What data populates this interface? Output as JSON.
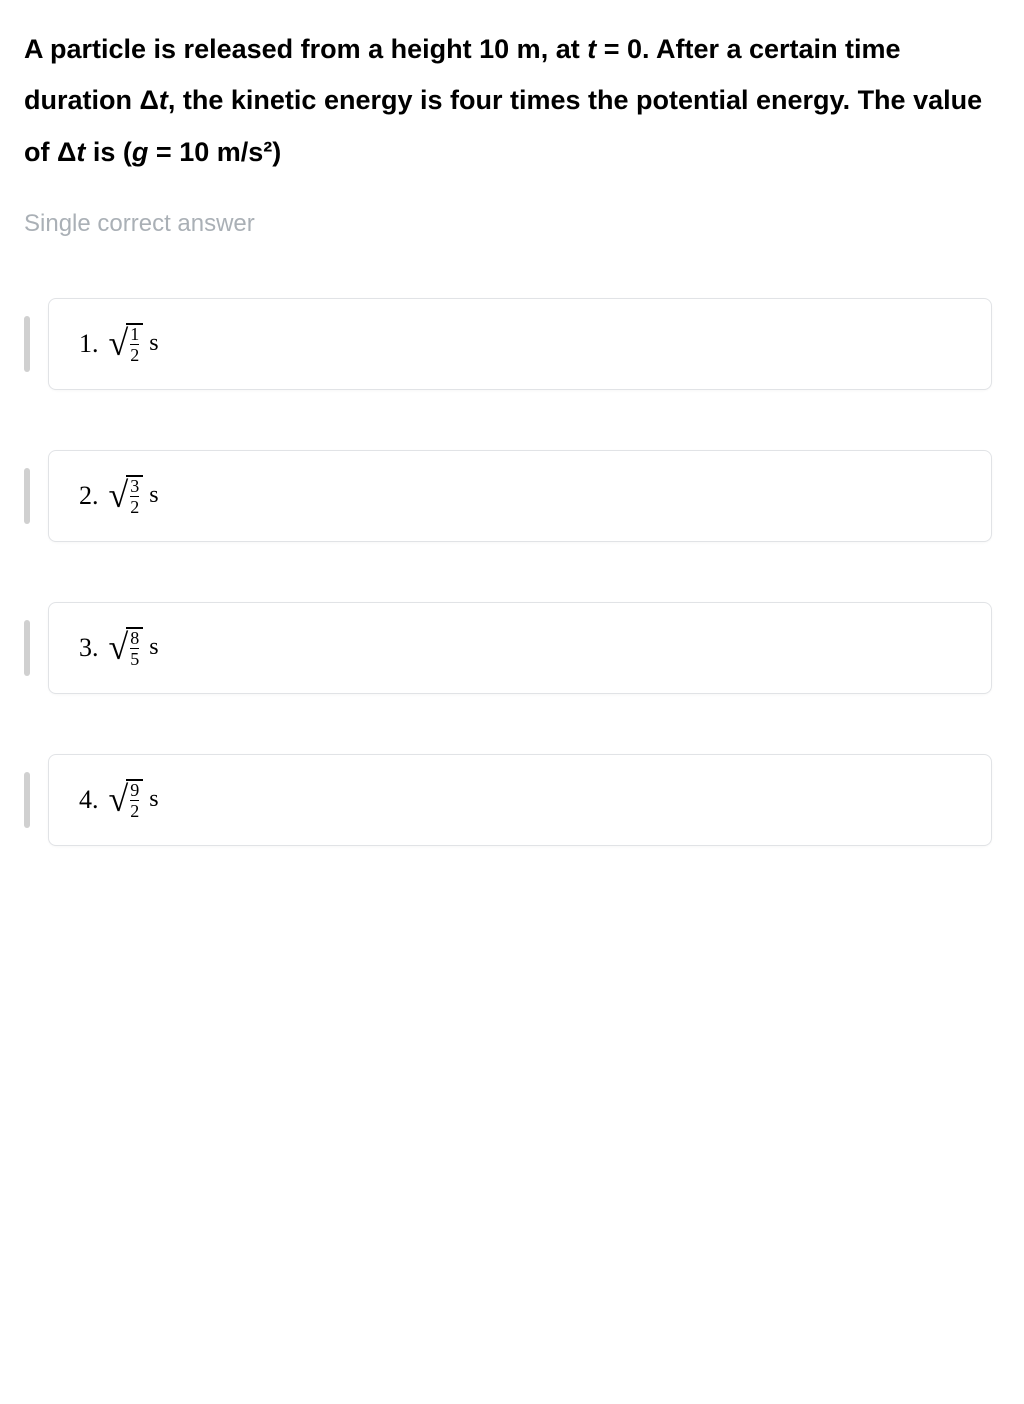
{
  "question": {
    "text_parts": [
      "A particle is released from a height 10 m, at ",
      " = 0. After a certain time duration Δ",
      ", the kinetic energy is four times the potential energy. The value of Δ",
      " is (",
      " = 10 m/s²)"
    ],
    "var_t": "t",
    "var_g": "g"
  },
  "hint": "Single correct answer",
  "options": [
    {
      "number": "1.",
      "numerator": "1",
      "denominator": "2",
      "unit": "s"
    },
    {
      "number": "2.",
      "numerator": "3",
      "denominator": "2",
      "unit": "s"
    },
    {
      "number": "3.",
      "numerator": "8",
      "denominator": "5",
      "unit": "s"
    },
    {
      "number": "4.",
      "numerator": "9",
      "denominator": "2",
      "unit": "s"
    }
  ],
  "style": {
    "background_color": "#ffffff",
    "question_color": "#000000",
    "question_fontsize": 27,
    "hint_color": "#aab0b6",
    "hint_fontsize": 24,
    "option_border_color": "#e1e3e6",
    "option_bar_color": "#d0d0d0",
    "option_fontsize": 26,
    "option_border_radius": 8
  }
}
